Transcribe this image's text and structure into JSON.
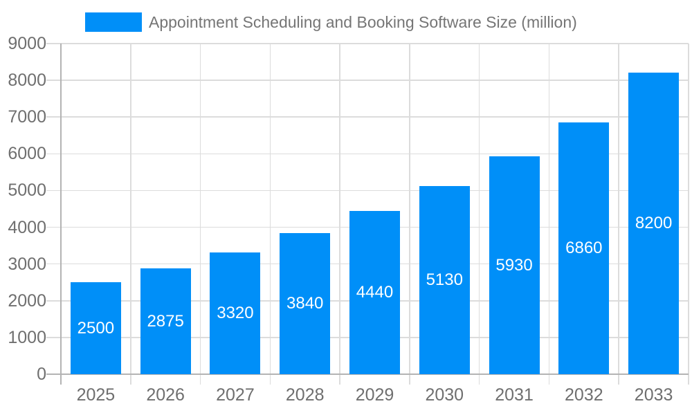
{
  "legend": {
    "label": "Appointment Scheduling and Booking Software Size (million)"
  },
  "chart_data": {
    "type": "bar",
    "title": "Appointment Scheduling and Booking Software Size (million)",
    "series_name": "Appointment Scheduling and Booking Software Size (million)",
    "categories": [
      "2025",
      "2026",
      "2027",
      "2028",
      "2029",
      "2030",
      "2031",
      "2032",
      "2033"
    ],
    "values": [
      2500,
      2875,
      3320,
      3840,
      4440,
      5130,
      5930,
      6860,
      8200
    ],
    "xlabel": "",
    "ylabel": "",
    "ylim": [
      0,
      9000
    ],
    "ytick_step": 1000,
    "ytick_labels": [
      "0",
      "1000",
      "2000",
      "3000",
      "4000",
      "5000",
      "6000",
      "7000",
      "8000",
      "9000"
    ],
    "grid": true,
    "legend_position": "top",
    "data_labels": "inside-center",
    "colors": {
      "bar": "#008ff8",
      "grid": "#dcdcdc",
      "axis": "#b3b3b3",
      "axis_label": "#6f6f6f",
      "value_label": "#ffffff",
      "legend_text": "#757575",
      "background": "#ffffff"
    }
  }
}
